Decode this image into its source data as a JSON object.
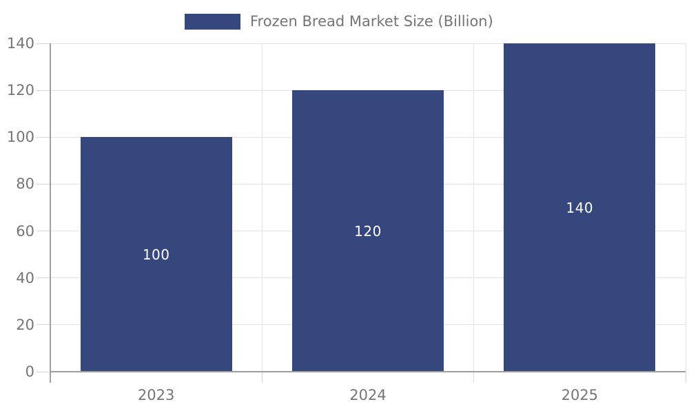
{
  "chart_data": {
    "type": "bar",
    "title": "Frozen Bread Market Size (Billion)",
    "categories": [
      "2023",
      "2024",
      "2025"
    ],
    "values": [
      100,
      120,
      140
    ],
    "bar_value_labels": [
      "100",
      "120",
      "140"
    ],
    "xlabel": "",
    "ylabel": "",
    "ylim": [
      0,
      140
    ],
    "yticks": [
      0,
      20,
      40,
      60,
      80,
      100,
      120,
      140
    ],
    "grid": true,
    "legend_position": "top-center",
    "colors": {
      "bar": "#36477E",
      "bar_label_text": "#FFFFFF",
      "tick_label": "#757575",
      "legend_text": "#757575",
      "axis_line": "#9E9E9E",
      "gridline": "#E4E4E4",
      "tick_mark": "#D6D6D6",
      "background": "#FFFFFF"
    }
  }
}
